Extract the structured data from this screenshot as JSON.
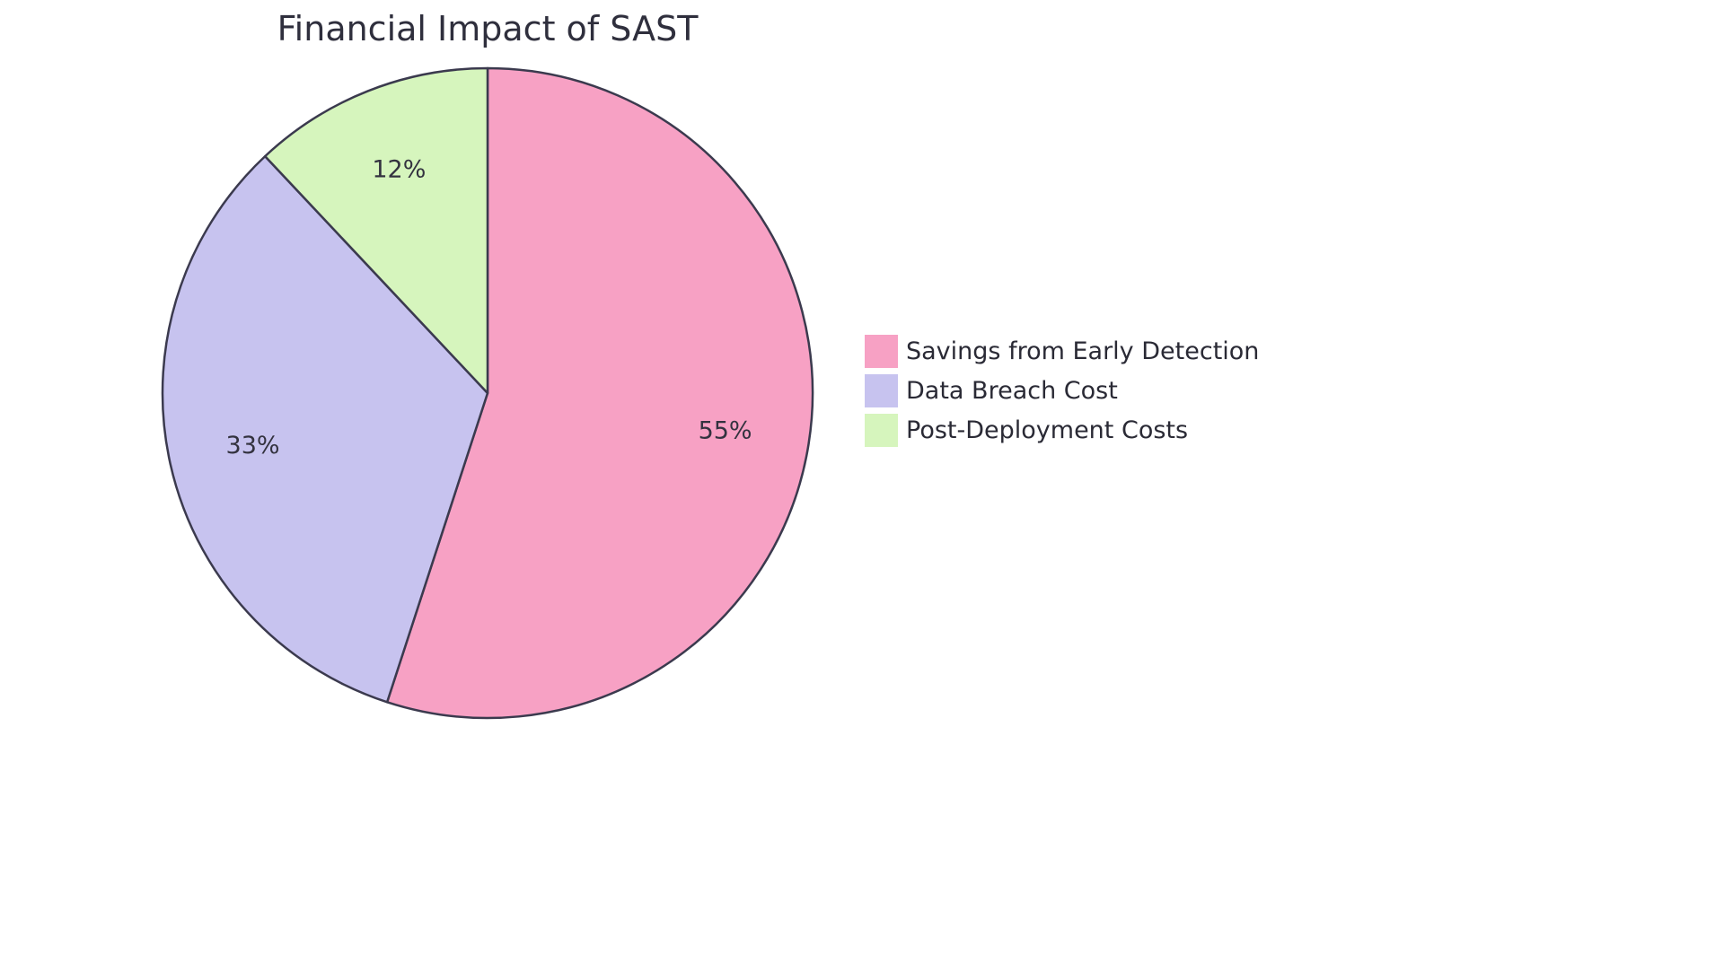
{
  "chart_data": {
    "type": "pie",
    "title": "Financial Impact of SAST",
    "labels": [
      "Savings from Early Detection",
      "Data Breach Cost",
      "Post-Deployment Costs"
    ],
    "values": [
      55,
      33,
      12
    ],
    "value_labels": [
      "55%",
      "33%",
      "12%"
    ],
    "colors": [
      "#F7A1C4",
      "#C7C3EF",
      "#D6F5BD"
    ],
    "stroke_color": "#3B3A4E",
    "label_color": "#33323F",
    "legend_position": "right",
    "start_angle_deg": 0,
    "direction": "clockwise"
  }
}
